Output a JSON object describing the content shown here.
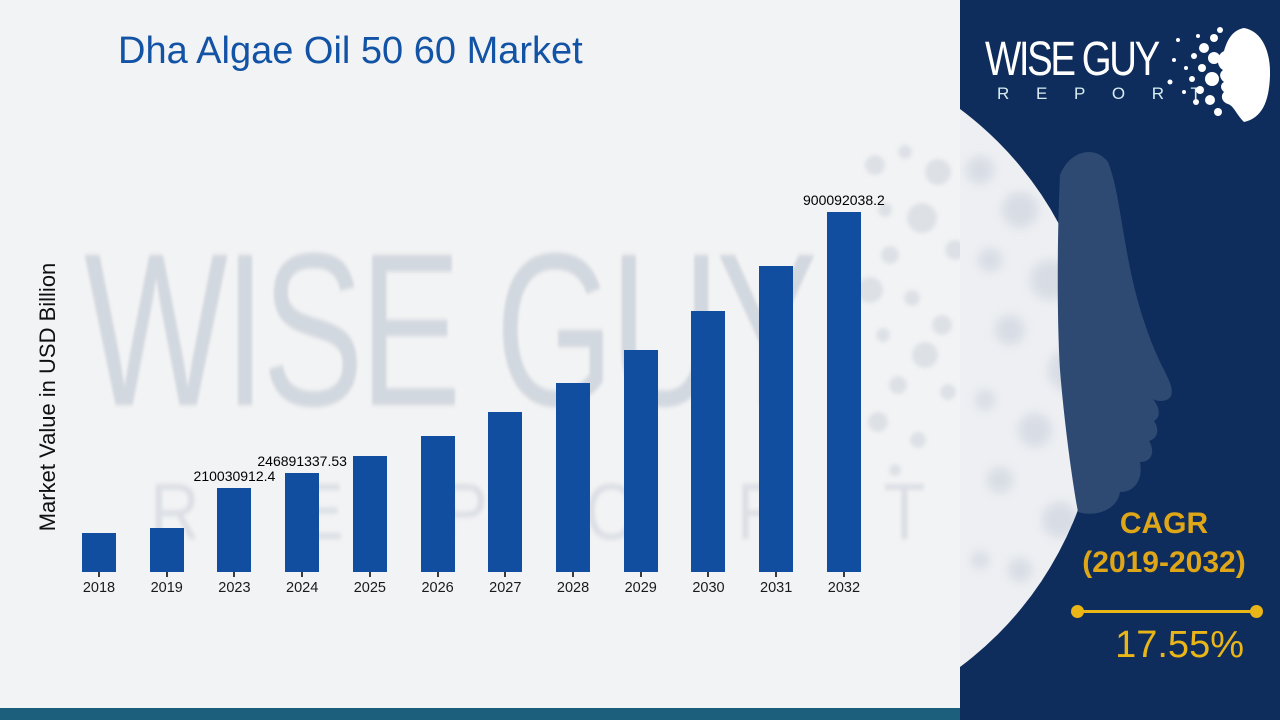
{
  "title": "Dha Algae Oil 50 60 Market",
  "y_axis_label": "Market Value in USD Billion",
  "watermark": {
    "line1": "WISE GUY",
    "line2": "R E P O R T S"
  },
  "logo": {
    "line1": "WISE GUY",
    "line2": "R E P O R T S"
  },
  "side_panel": {
    "cagr_label": "CAGR",
    "cagr_period": "(2019-2032)",
    "cagr_value": "17.55%"
  },
  "colors": {
    "bar": "#114e9f",
    "title_text": "#1353a5",
    "panel_background": "#0e2d5c",
    "accent_gold": "#e9b517",
    "bottom_strip_teal": "#1b5f7d",
    "panel_face_silhouette": "#2e4a73"
  },
  "chart_data": {
    "type": "bar",
    "title": "Dha Algae Oil 50 60 Market",
    "xlabel": "",
    "ylabel": "Market Value in USD Billion",
    "categories": [
      "2018",
      "2019",
      "2023",
      "2024",
      "2025",
      "2026",
      "2027",
      "2028",
      "2029",
      "2030",
      "2031",
      "2032"
    ],
    "values": [
      98000000,
      110000000,
      210030912.4,
      246891337.53,
      290220900,
      341180700,
      401057900,
      471443600,
      554182000,
      651441000,
      765769000,
      900092038.2
    ],
    "data_labels": [
      "",
      "",
      "210030912.4",
      "246891337.53",
      "",
      "",
      "",
      "",
      "",
      "",
      "",
      "900092038.2"
    ],
    "legend": [],
    "grid": false,
    "ylim": [
      0,
      950000000
    ],
    "cagr_annotation": {
      "label": "CAGR",
      "period": "(2019-2032)",
      "value": "17.55%"
    }
  }
}
